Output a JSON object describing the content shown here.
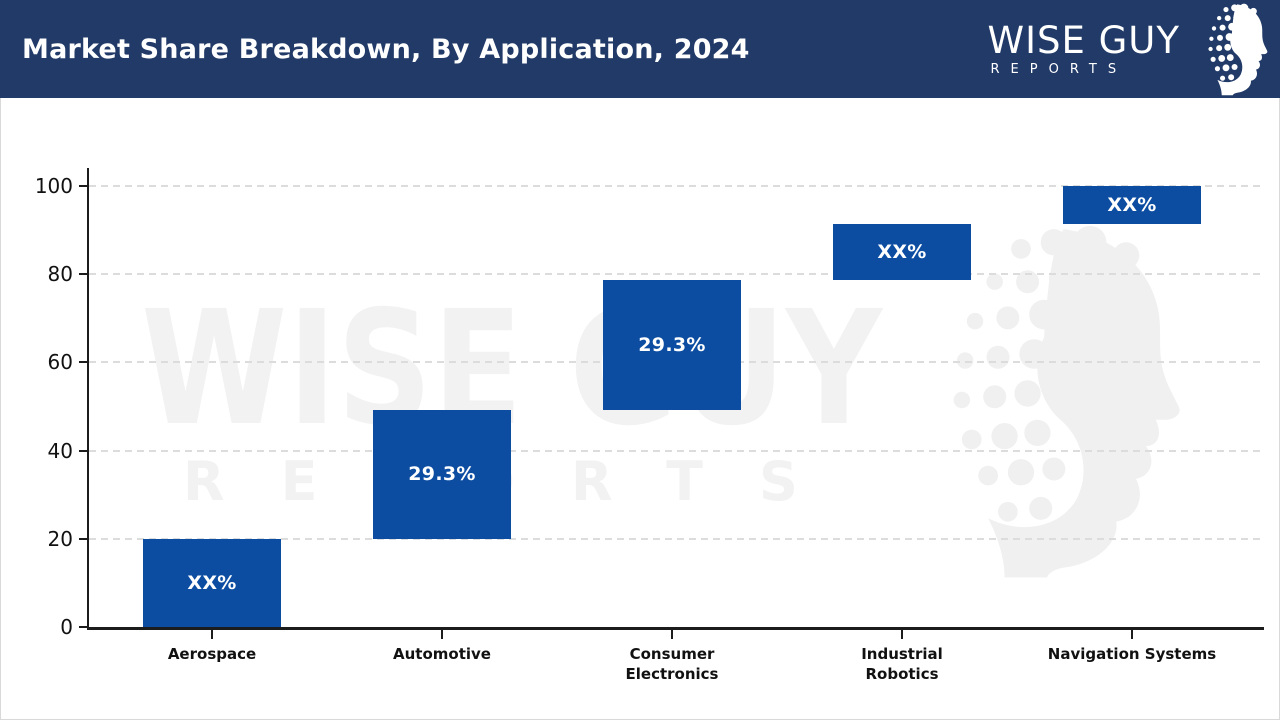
{
  "header": {
    "title": "Market Share Breakdown, By Application, 2024",
    "brand": {
      "name": "WISE GUY",
      "sub": "REPORTS"
    }
  },
  "watermark": {
    "name": "WISE GUY",
    "sub": "REPORTS"
  },
  "chart_data": {
    "type": "bar",
    "variant": "floating-segment-waterfall",
    "title": "Market Share Breakdown, By Application, 2024",
    "categories": [
      "Aerospace",
      "Automotive",
      "Consumer Electronics",
      "Industrial Robotics",
      "Navigation Systems"
    ],
    "category_label_lines": [
      [
        "Aerospace"
      ],
      [
        "Automotive"
      ],
      [
        "Consumer",
        "Electronics"
      ],
      [
        "Industrial",
        "Robotics"
      ],
      [
        "Navigation Systems"
      ]
    ],
    "bars": [
      {
        "category": "Aerospace",
        "start": 0,
        "end": 20,
        "label": "XX%"
      },
      {
        "category": "Automotive",
        "start": 20,
        "end": 49.3,
        "label": "29.3%"
      },
      {
        "category": "Consumer Electronics",
        "start": 49.3,
        "end": 78.6,
        "label": "29.3%"
      },
      {
        "category": "Industrial Robotics",
        "start": 78.6,
        "end": 91.4,
        "label": "XX%"
      },
      {
        "category": "Navigation Systems",
        "start": 91.4,
        "end": 100,
        "label": "XX%"
      }
    ],
    "xlabel": "",
    "ylabel": "",
    "yticks": [
      0,
      20,
      40,
      60,
      80,
      100
    ],
    "ylim": [
      0,
      105
    ],
    "grid": "horizontal dashed",
    "legend": "none",
    "bar_color": "#0c4da2",
    "bar_label_color": "#ffffff"
  },
  "colors": {
    "header_bg": "#213a68",
    "bar": "#0c4da2",
    "axis": "#1c1c1c",
    "grid": "#dcdcdc",
    "watermark": "#f2f2f2",
    "border": "#d9d9d9"
  }
}
